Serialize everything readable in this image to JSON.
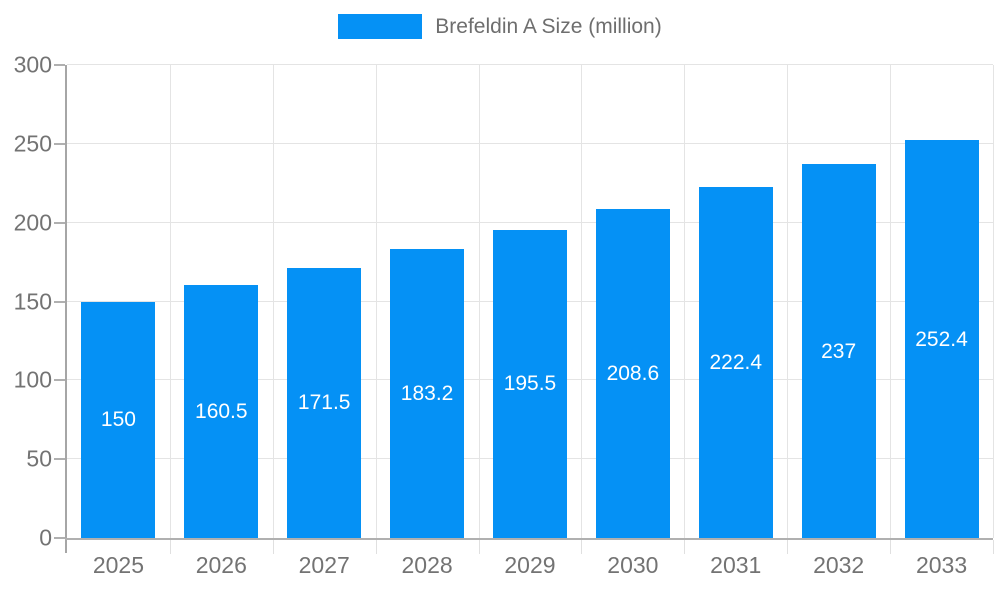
{
  "chart_data": {
    "type": "bar",
    "title": "Brefeldin A Size (million)",
    "series_name": "Brefeldin A Size (million)",
    "categories": [
      "2025",
      "2026",
      "2027",
      "2028",
      "2029",
      "2030",
      "2031",
      "2032",
      "2033"
    ],
    "values": [
      150,
      160.5,
      171.5,
      183.2,
      195.5,
      208.6,
      222.4,
      237,
      252.4
    ],
    "value_labels": [
      "150",
      "160.5",
      "171.5",
      "183.2",
      "195.5",
      "208.6",
      "222.4",
      "237",
      "252.4"
    ],
    "xlabel": "",
    "ylabel": "",
    "ylim": [
      0,
      300
    ],
    "yticks": [
      0,
      50,
      100,
      150,
      200,
      250,
      300
    ],
    "grid": true,
    "legend_position": "top",
    "bar_color": "#0591f5",
    "value_label_color": "#ffffff",
    "grid_color": "#e4e4e4",
    "axis_color": "#b0b0b0",
    "axis_text_color": "#737373",
    "legend_text_color": "#6e6e6e"
  }
}
